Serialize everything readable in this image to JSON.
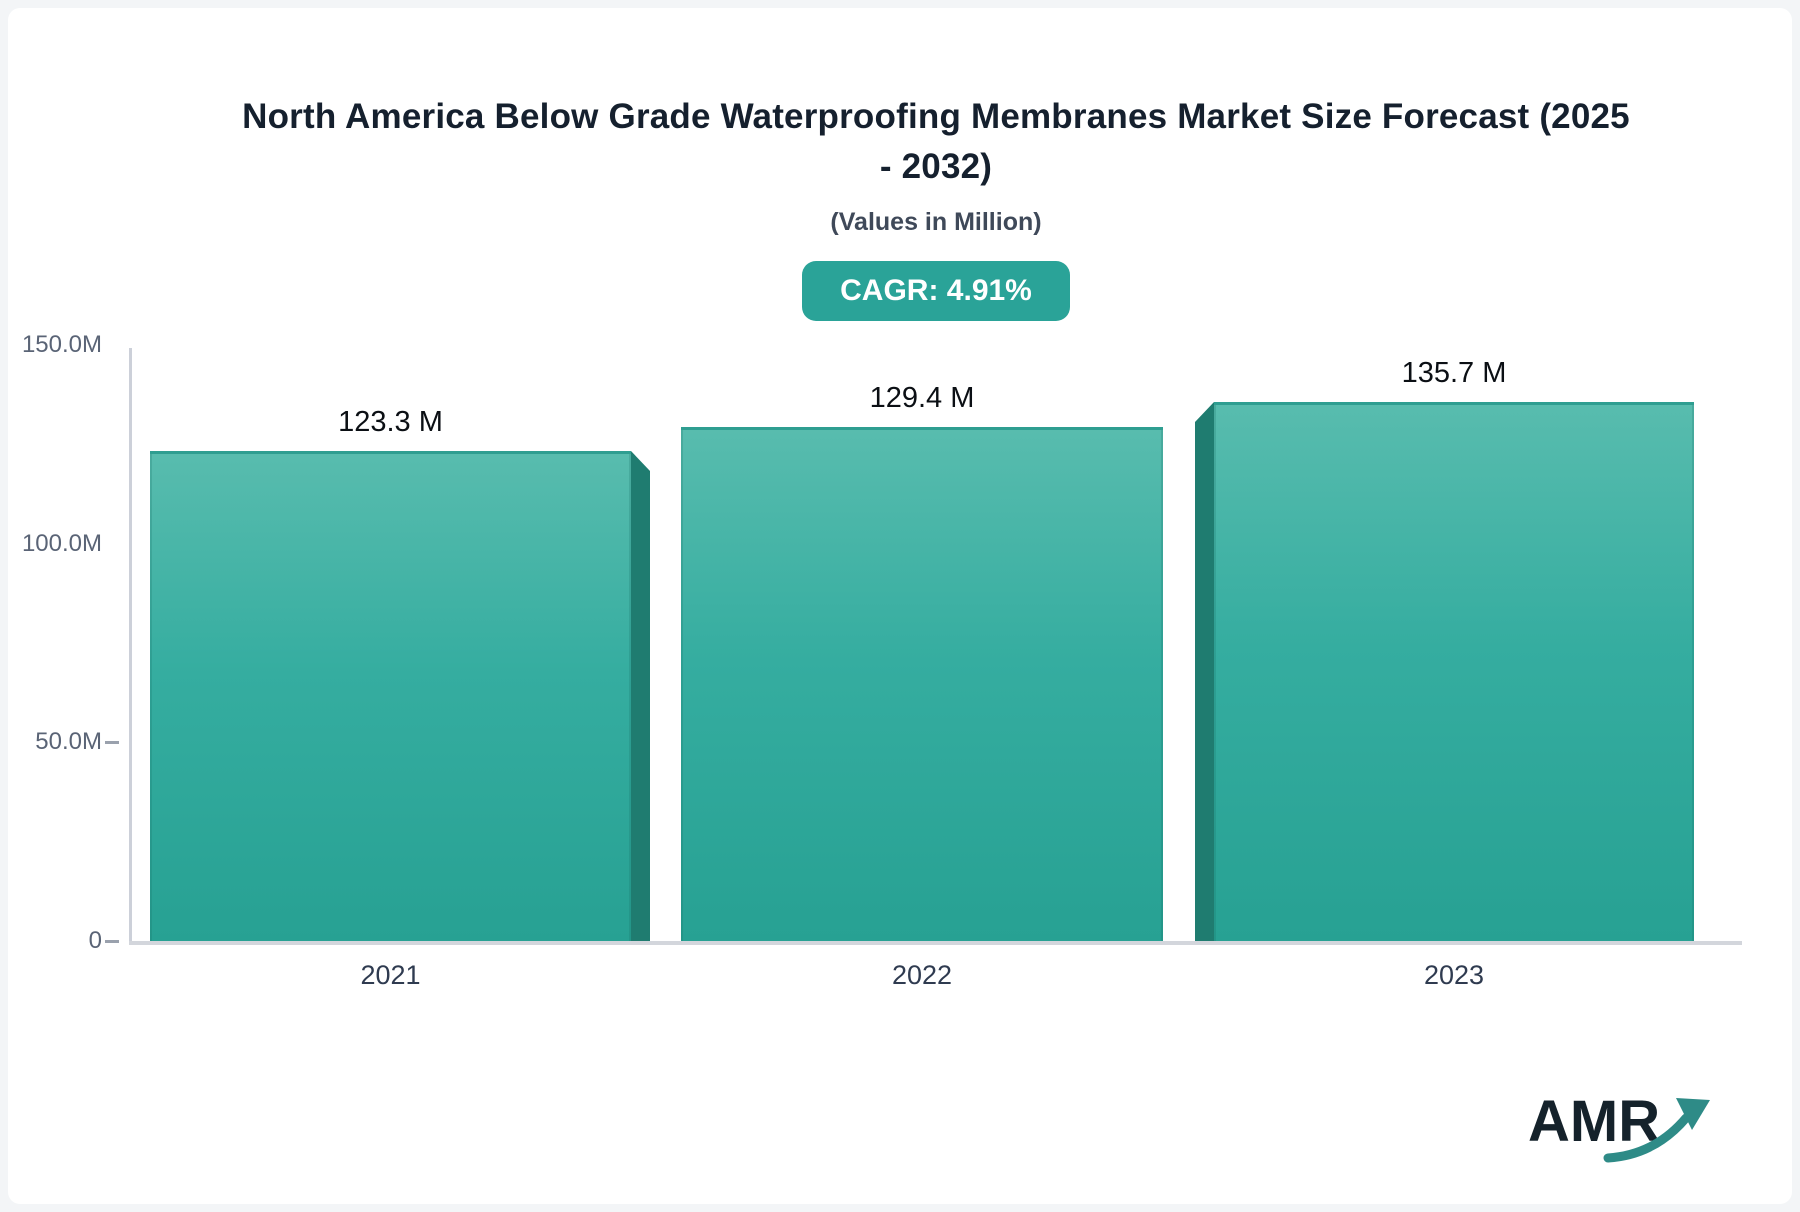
{
  "page": {
    "background_color": "#f3f5f7",
    "card_background_color": "#ffffff"
  },
  "chart_data": {
    "type": "bar",
    "title": "North America Below Grade Waterproofing Membranes Market Size Forecast (2025 - 2032)",
    "title_lines": [
      "North America Below Grade Waterproofing Membranes Market Size Forecast (2025",
      "- 2032)"
    ],
    "subtitle": "(Values in Million)",
    "badge_label": "CAGR: 4.91%",
    "cagr_percent": 4.91,
    "categories": [
      "2021",
      "2022",
      "2023"
    ],
    "values": [
      123.3,
      129.4,
      135.7
    ],
    "value_labels": [
      "123.3 M",
      "129.4 M",
      "135.7 M"
    ],
    "y_axis": {
      "min": 0,
      "max": 150,
      "ticks": [
        {
          "value": 150,
          "label": "150.0M"
        },
        {
          "value": 100,
          "label": "100.0M"
        },
        {
          "value": 50,
          "label": "50.0M"
        },
        {
          "value": 0,
          "label": "0"
        }
      ]
    },
    "grid": false,
    "legend_position": "none",
    "bar_style": "3d-teal-gradient"
  },
  "branding": {
    "logo_text": "AMR",
    "logo_arrow_icon": "trending-up-arrow"
  },
  "colors": {
    "bar_gradient_top": "#58bcae",
    "bar_gradient_mid": "#35ada0",
    "bar_gradient_bottom": "#27a193",
    "bar_top_border": "#2f9e91",
    "bar_side_panel": "#1f7c70",
    "badge_background": "#2aa398",
    "badge_text": "#ffffff",
    "axis_line": "#ccd0d9",
    "baseline": "#d3d6dc",
    "tick_label": "#5a6476",
    "category_label": "#2f3b50",
    "value_label": "#0b0f14",
    "title_text": "#15202e",
    "subtitle_text": "#3f4959",
    "logo_text": "#15222b",
    "logo_arrow": "#2e8b87"
  }
}
